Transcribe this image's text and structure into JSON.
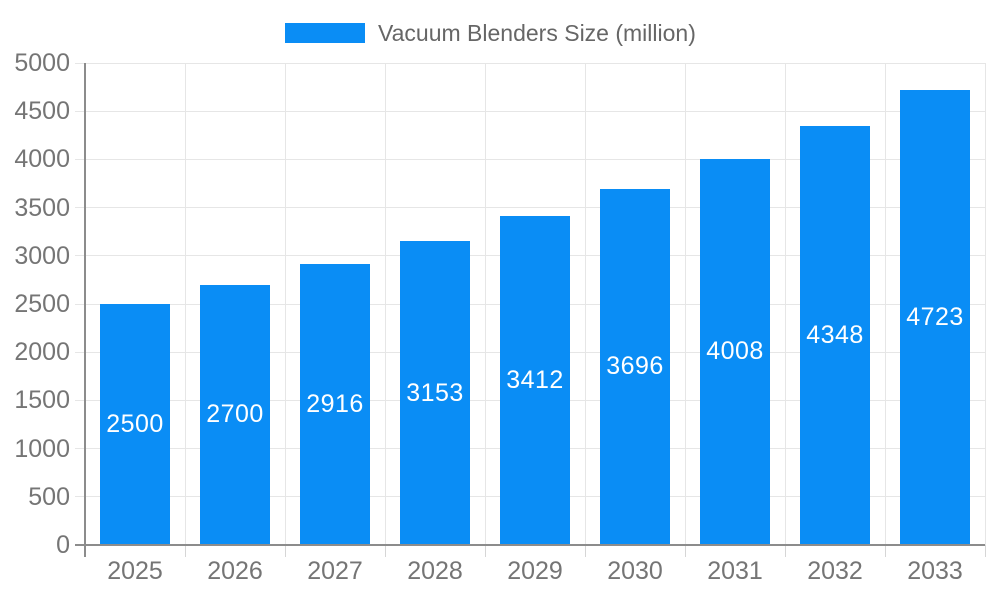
{
  "chart_data": {
    "type": "bar",
    "title": "Vacuum Blenders Size (million)",
    "categories": [
      "2025",
      "2026",
      "2027",
      "2028",
      "2029",
      "2030",
      "2031",
      "2032",
      "2033"
    ],
    "series": [
      {
        "name": "Vacuum Blenders Size (million)",
        "values": [
          2500,
          2700,
          2916,
          3153,
          3412,
          3696,
          4008,
          4348,
          4723
        ]
      }
    ],
    "xlabel": "",
    "ylabel": "",
    "ylim": [
      0,
      5000
    ],
    "ytick_step": 500,
    "yticks": [
      0,
      500,
      1000,
      1500,
      2000,
      2500,
      3000,
      3500,
      4000,
      4500,
      5000
    ],
    "grid": true,
    "legend_position": "top-center",
    "value_labels": "inside-center",
    "colors": {
      "bar": "#0a8df5",
      "grid": "#e6e6e6",
      "tick": "#d6d6d6",
      "axis": "#8c8c8c",
      "axis_text": "#757575",
      "legend_text": "#666666",
      "value_label_text": "#ffffff",
      "background": "#ffffff"
    }
  }
}
